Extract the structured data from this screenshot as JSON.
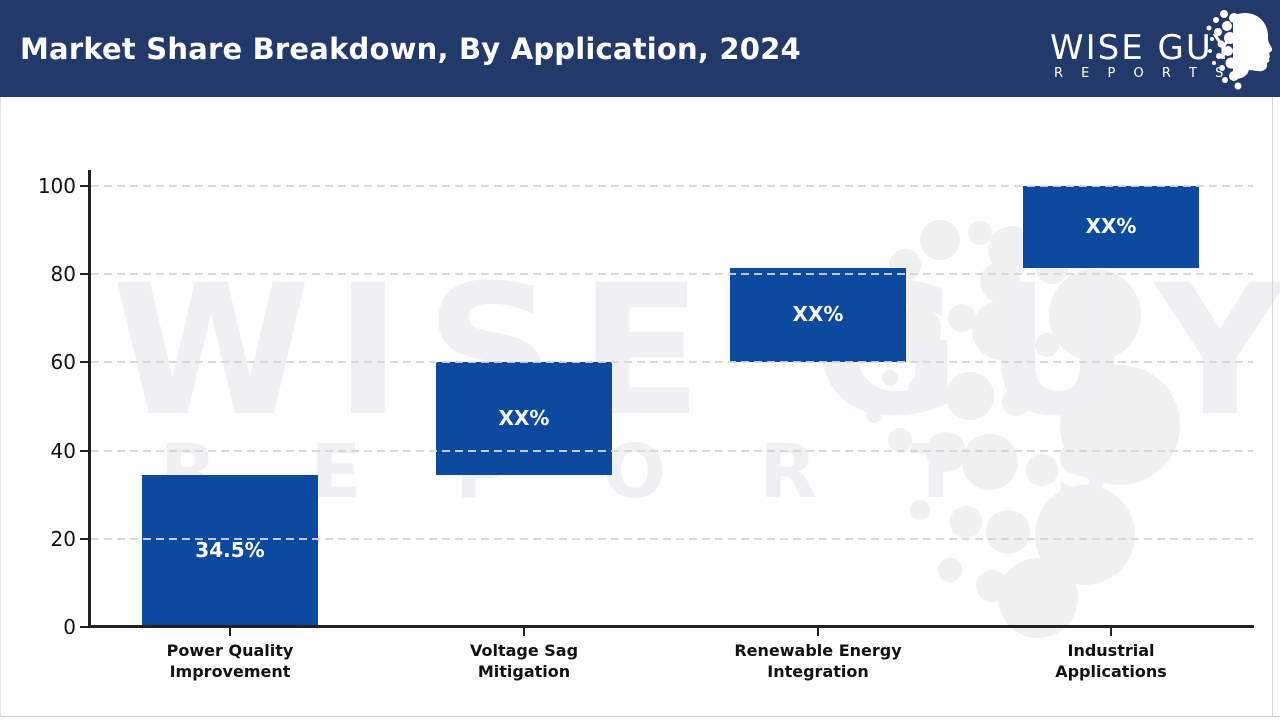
{
  "header": {
    "title": "Market Share Breakdown, By Application, 2024",
    "logo_line1": "WISE GUY",
    "logo_line2": "R E P O R T S"
  },
  "watermark": {
    "line1": "WISE GUY",
    "line2": "R E P O R T S"
  },
  "chart_data": {
    "type": "bar",
    "subtype": "waterfall",
    "title": "Market Share Breakdown, By Application, 2024",
    "categories": [
      [
        "Power Quality",
        "Improvement"
      ],
      [
        "Voltage Sag",
        "Mitigation"
      ],
      [
        "Renewable Energy",
        "Integration"
      ],
      [
        "Industrial",
        "Applications"
      ]
    ],
    "segments": [
      {
        "from": 0,
        "to": 34.5,
        "label": "34.5%"
      },
      {
        "from": 34.5,
        "to": 60,
        "label": "XX%"
      },
      {
        "from": 60,
        "to": 81.5,
        "label": "XX%"
      },
      {
        "from": 81.5,
        "to": 100,
        "label": "XX%"
      }
    ],
    "xlabel": "",
    "ylabel": "",
    "ylim": [
      0,
      100
    ],
    "yticks": [
      0,
      20,
      40,
      60,
      80,
      100
    ],
    "grid": "horizontal-dashed",
    "legend": "none",
    "bar_color": "#0b4a9e",
    "bar_label_color": "#ffffff",
    "axis_color": "#222222",
    "grid_color": "#d6d6d6"
  },
  "brand": {
    "header_bg": "#22396a",
    "watermark_color": "#f0f0f2"
  }
}
